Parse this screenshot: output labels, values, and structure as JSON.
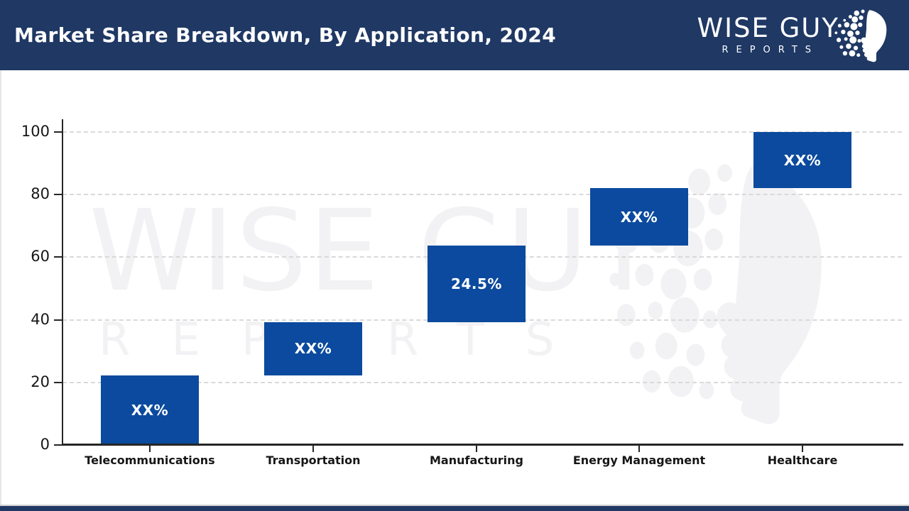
{
  "header": {
    "title": "Market Share Breakdown, By Application, 2024",
    "logo": {
      "primary": "WISE GUY",
      "secondary": "REPORTS"
    }
  },
  "watermark": {
    "primary": "WISE GUY",
    "secondary": "REPORTS"
  },
  "colors": {
    "header_bg": "#1f3864",
    "bar": "#0b4a9e",
    "bar_label": "#ffffff",
    "grid": "#d9d9d9",
    "axis": "#262626",
    "tick_label": "#161616",
    "watermark": "#f2f2f4"
  },
  "chart_data": {
    "type": "bar",
    "variant": "waterfall",
    "title": "Market Share Breakdown, By Application, 2024",
    "categories": [
      "Telecommunications",
      "Transportation",
      "Manufacturing",
      "Energy Management",
      "Healthcare"
    ],
    "segments": [
      {
        "category": "Telecommunications",
        "start": 0,
        "end": 22.3,
        "value_label": "XX%"
      },
      {
        "category": "Transportation",
        "start": 22.3,
        "end": 39.3,
        "value_label": "XX%"
      },
      {
        "category": "Manufacturing",
        "start": 39.3,
        "end": 63.8,
        "value_label": "24.5%"
      },
      {
        "category": "Energy Management",
        "start": 63.8,
        "end": 82.0,
        "value_label": "XX%"
      },
      {
        "category": "Healthcare",
        "start": 82.0,
        "end": 100,
        "value_label": "XX%"
      }
    ],
    "known_values": {
      "Manufacturing": 24.5
    },
    "xlabel": "",
    "ylabel": "",
    "ylim": [
      0,
      100
    ],
    "yticks": [
      0,
      20,
      40,
      60,
      80,
      100
    ],
    "grid": true,
    "legend": false
  }
}
